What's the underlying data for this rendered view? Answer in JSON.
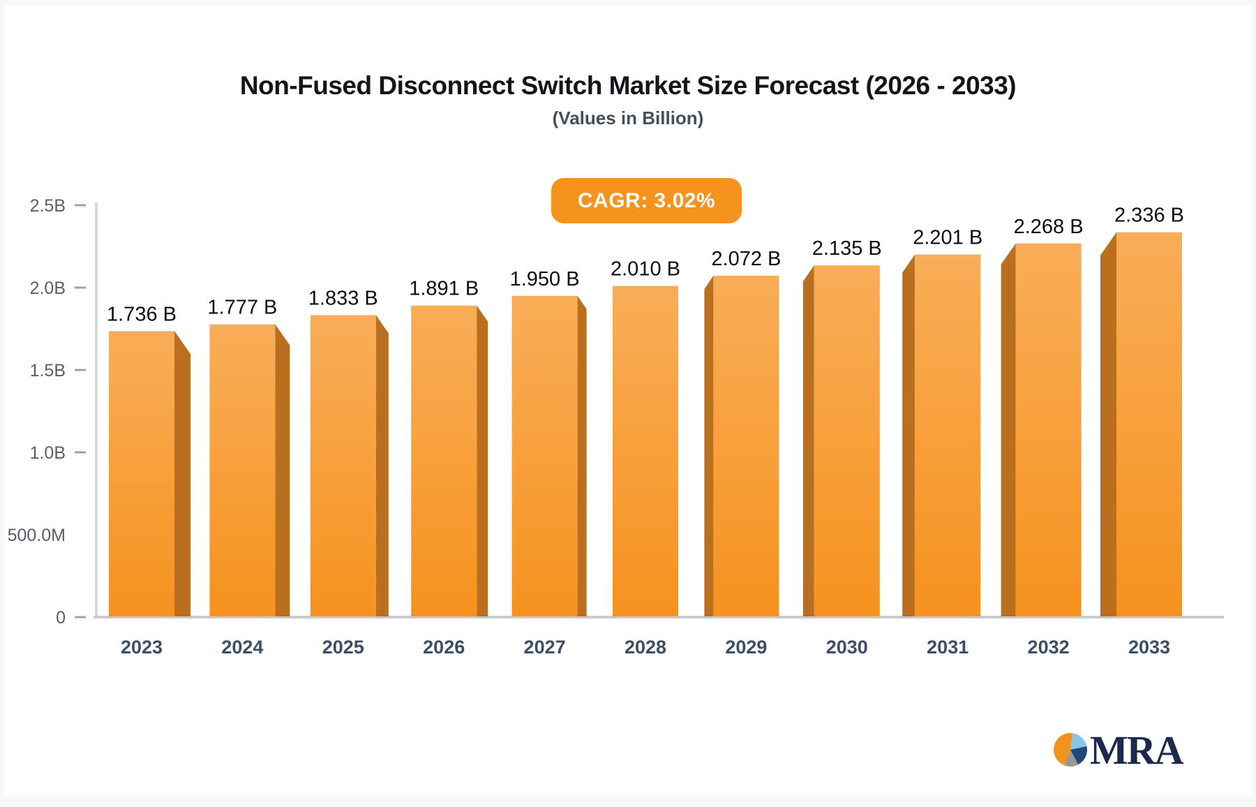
{
  "header": {
    "title": "Non-Fused Disconnect Switch Market Size Forecast (2026 - 2033)",
    "subtitle": "(Values in Billion)"
  },
  "badge": {
    "label": "CAGR: 3.02%",
    "bg": "#f6921e",
    "text_color": "#ffffff"
  },
  "chart_data": {
    "type": "bar",
    "title": "Non-Fused Disconnect Switch Market Size Forecast (2026 - 2033)",
    "subtitle": "(Values in Billion)",
    "categories": [
      "2023",
      "2024",
      "2025",
      "2026",
      "2027",
      "2028",
      "2029",
      "2030",
      "2031",
      "2032",
      "2033"
    ],
    "values": [
      1.736,
      1.777,
      1.833,
      1.891,
      1.95,
      2.01,
      2.072,
      2.135,
      2.201,
      2.268,
      2.336
    ],
    "value_labels": [
      "1.736 B",
      "1.777 B",
      "1.833 B",
      "1.891 B",
      "1.950 B",
      "2.010 B",
      "2.072 B",
      "2.135 B",
      "2.201 B",
      "2.268 B",
      "2.336 B"
    ],
    "xlabel": "",
    "ylabel": "",
    "ylim": [
      0,
      2.5
    ],
    "grid": false,
    "legend": null,
    "yticks": [
      {
        "label": "2.5B",
        "value": 2.5,
        "dash": true
      },
      {
        "label": "2.0B",
        "value": 2.0,
        "dash": true
      },
      {
        "label": "1.5B",
        "value": 1.5,
        "dash": true
      },
      {
        "label": "1.0B",
        "value": 1.0,
        "dash": true
      },
      {
        "label": "500.0M",
        "value": 0.5,
        "dash": false
      },
      {
        "label": "0",
        "value": 0.0,
        "dash": true
      }
    ],
    "colors": {
      "bar_front_top": "#f9ad58",
      "bar_front_bottom": "#f6921e",
      "bar_side": "#b96f1e",
      "y_axis_line": "#d5d8dd",
      "x_axis_line": "#c9ccd2",
      "tick_dash": "#9aa1ab",
      "y_tick_label": "#575f6b",
      "x_tick_label": "#3c4d66",
      "value_label": "#0d0d0d"
    }
  },
  "logo": {
    "text": "MRA",
    "text_color": "#1b2a4c",
    "pie_slices": [
      {
        "name": "light-blue-slice",
        "color": "#86c7ea",
        "start": 8,
        "end": 78
      },
      {
        "name": "navy-slice",
        "color": "#20497a",
        "start": 78,
        "end": 152
      },
      {
        "name": "gray-slice",
        "color": "#989898",
        "start": 152,
        "end": 200
      },
      {
        "name": "orange-slice",
        "color": "#f0941f",
        "start": 200,
        "end": 368
      }
    ]
  }
}
